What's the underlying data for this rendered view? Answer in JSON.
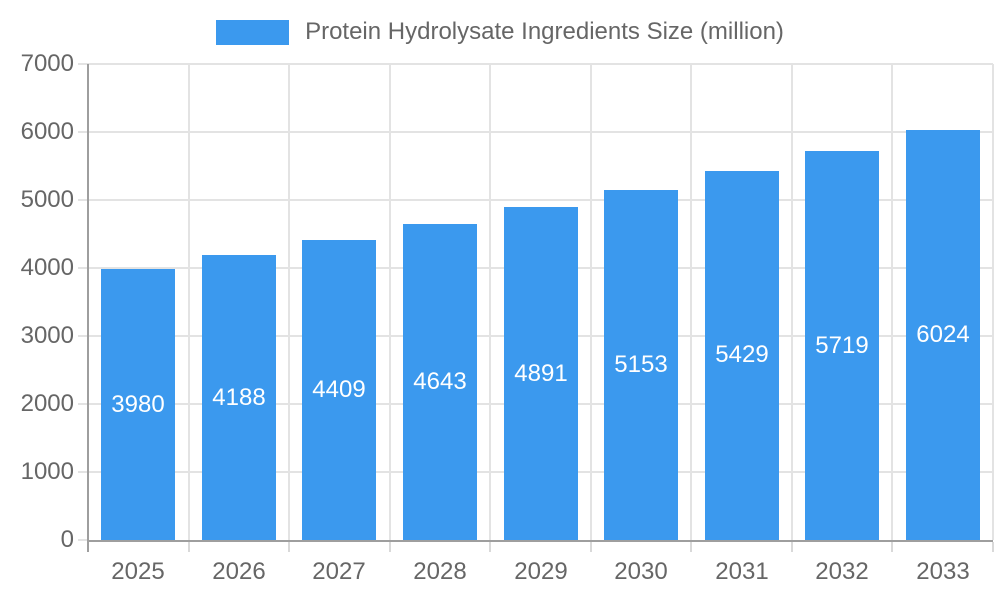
{
  "legend": {
    "label": "Protein Hydrolysate Ingredients Size (million)"
  },
  "colors": {
    "bar": "#3b99ee",
    "grid": "#e3e3e3",
    "axis_border": "#9e9e9e",
    "axis_text": "#666666",
    "value_label_text": "#ffffff",
    "background": "#ffffff"
  },
  "chart_data": {
    "type": "bar",
    "title": "Protein Hydrolysate Ingredients Size (million)",
    "categories": [
      "2025",
      "2026",
      "2027",
      "2028",
      "2029",
      "2030",
      "2031",
      "2032",
      "2033"
    ],
    "values": [
      3980,
      4188,
      4409,
      4643,
      4891,
      5153,
      5429,
      5719,
      6024
    ],
    "xlabel": "",
    "ylabel": "",
    "ylim": [
      0,
      7000
    ],
    "ytick_step": 1000,
    "ytick_labels": [
      "0",
      "1000",
      "2000",
      "3000",
      "4000",
      "5000",
      "6000",
      "7000"
    ],
    "grid": true,
    "legend_position": "top",
    "value_label_position": "inside-center"
  }
}
